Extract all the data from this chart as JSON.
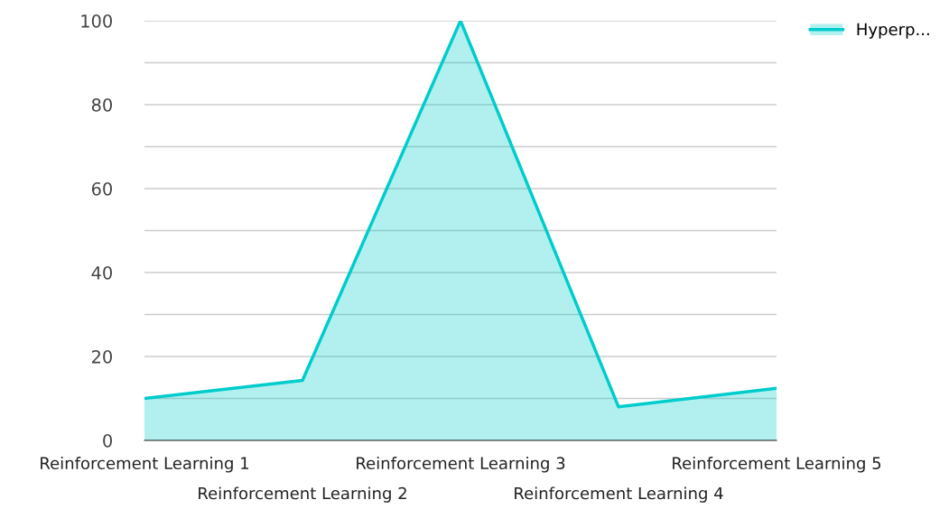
{
  "chart_data": {
    "type": "area",
    "categories": [
      "Reinforcement Learning 1",
      "Reinforcement Learning 2",
      "Reinforcement Learning 3",
      "Reinforcement Learning 4",
      "Reinforcement Learning 5"
    ],
    "series": [
      {
        "name": "Hyperp...",
        "color": "#00cccc",
        "values": [
          10,
          14.3,
          100,
          8,
          12.4
        ]
      }
    ],
    "ylim": [
      0,
      100
    ],
    "yticks": [
      0,
      {
        "value": 10,
        "label": null
      },
      20,
      {
        "value": 30,
        "label": null
      },
      40,
      {
        "value": 50,
        "label": null
      },
      60,
      {
        "value": 70,
        "label": null
      },
      80,
      {
        "value": 90,
        "label": null
      },
      100
    ],
    "grid": "y",
    "legend": "top right",
    "marker": "none",
    "line_style": "solid"
  }
}
